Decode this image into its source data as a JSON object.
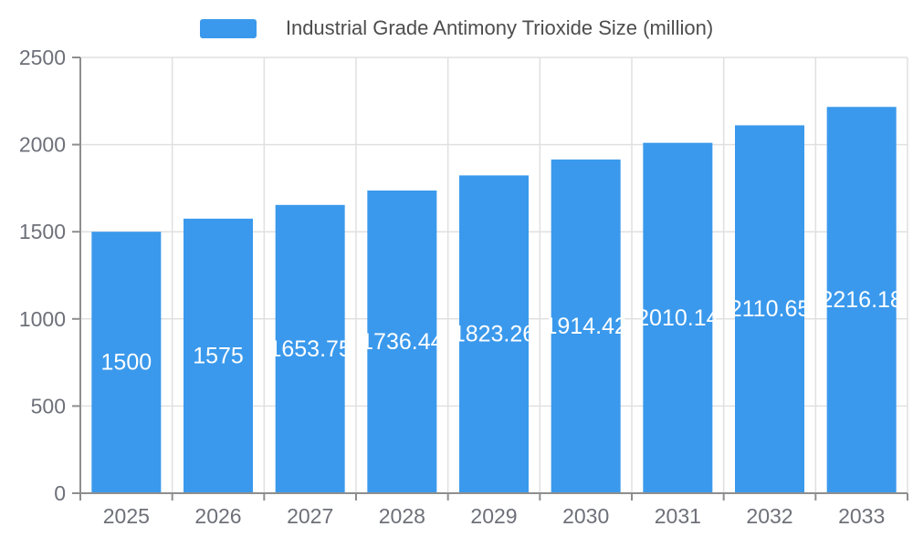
{
  "chart_data": {
    "type": "bar",
    "title": "",
    "legend": "Industrial Grade Antimony Trioxide Size (million)",
    "legend_position": "top-center",
    "categories": [
      "2025",
      "2026",
      "2027",
      "2028",
      "2029",
      "2030",
      "2031",
      "2032",
      "2033"
    ],
    "values": [
      1500,
      1575,
      1653.75,
      1736.44,
      1823.26,
      1914.42,
      2010.14,
      2110.65,
      2216.18
    ],
    "bar_labels": [
      "1500",
      "1575",
      "1653.75",
      "1736.44",
      "1823.26",
      "1914.42",
      "2010.14",
      "2110.65",
      "2216.18"
    ],
    "xlabel": "",
    "ylabel": "",
    "ylim": [
      0,
      2500
    ],
    "yticks": [
      0,
      500,
      1000,
      1500,
      2000,
      2500
    ],
    "grid": true,
    "bar_color": "#3A99EC",
    "grid_color": "#E0E0E0",
    "axis_color": "#8E8E8E",
    "tick_text_color": "#6E7079",
    "bar_label_color": "#FFFFFF"
  }
}
